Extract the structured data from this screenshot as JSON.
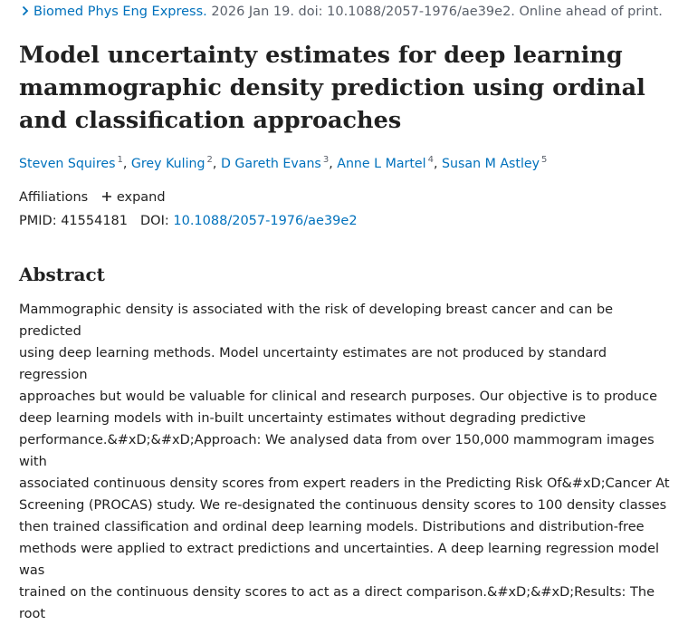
{
  "citation": {
    "journal": "Biomed Phys Eng Express.",
    "details": " 2026 Jan 19. doi: 10.1088/2057-1976/ae39e2. Online ahead of print."
  },
  "title": "Model uncertainty estimates for deep learning mammographic density prediction using ordinal and classification approaches",
  "authors": [
    {
      "name": "Steven Squires",
      "sup": "1"
    },
    {
      "name": "Grey Kuling",
      "sup": "2"
    },
    {
      "name": "D Gareth Evans",
      "sup": "3"
    },
    {
      "name": "Anne L Martel",
      "sup": "4"
    },
    {
      "name": "Susan M Astley",
      "sup": "5"
    }
  ],
  "author_separator": ", ",
  "affiliations": {
    "label": "Affiliations",
    "expand_label": "expand"
  },
  "identifiers": {
    "pmid_label": "PMID:",
    "pmid_value": "41554181",
    "doi_label": "DOI:",
    "doi_value": "10.1088/2057-1976/ae39e2"
  },
  "abstract": {
    "heading": "Abstract",
    "lines": [
      "Mammographic density is associated with the risk of developing breast cancer and can be predicted",
      "using deep learning methods. Model uncertainty estimates are not produced by standard regression",
      "approaches but would be valuable for clinical and research purposes. Our objective is to produce",
      "deep learning models with in-built uncertainty estimates without degrading predictive",
      "performance.&#xD;&#xD;Approach: We analysed data from over 150,000 mammogram images with",
      "associated continuous density scores from expert readers in the Predicting Risk Of&#xD;Cancer At",
      "Screening (PROCAS) study. We re-designated the continuous density scores to 100 density classes",
      "then trained classification and ordinal deep learning models. Distributions and distribution-free",
      "methods were applied to extract predictions and uncertainties. A deep learning regression model was",
      "trained on the continuous density scores to act as a direct comparison.&#xD;&#xD;Results: The root"
    ]
  },
  "colors": {
    "link": "#0071bc",
    "text": "#212121",
    "muted": "#5b616b"
  }
}
